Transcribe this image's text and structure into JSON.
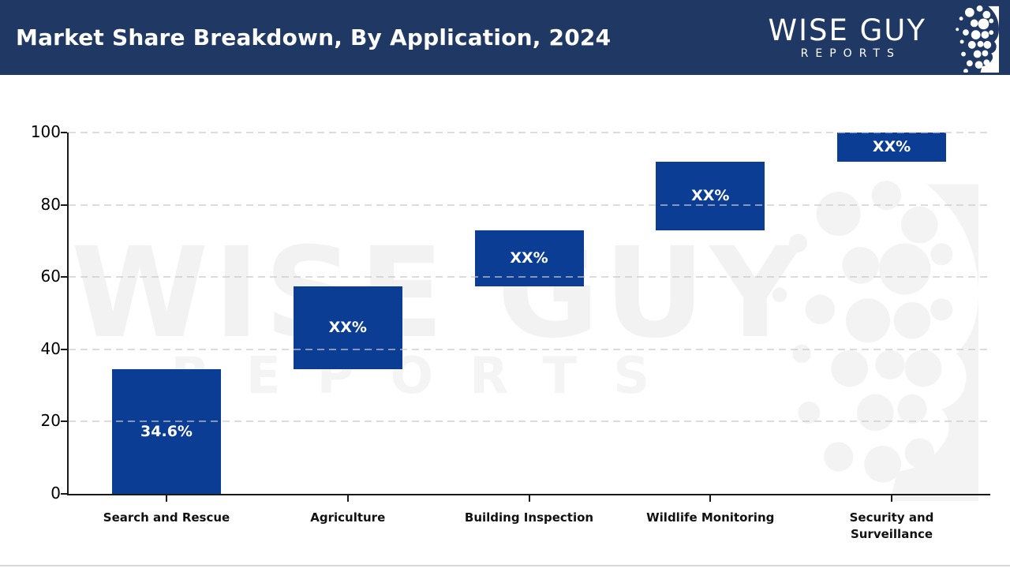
{
  "header": {
    "title": "Market Share Breakdown, By Application, 2024",
    "brand_line1": "WISE GUY",
    "brand_line2": "REPORTS",
    "bg_color": "#1f3864"
  },
  "watermark": {
    "line1": "WISE GUY",
    "line2": "REPORTS"
  },
  "chart_data": {
    "type": "bar",
    "subtype": "waterfall",
    "title": "Market Share Breakdown, By Application, 2024",
    "xlabel": "",
    "ylabel": "",
    "ylim": [
      0,
      100
    ],
    "yticks": [
      0,
      20,
      40,
      60,
      80,
      100
    ],
    "grid": "dashed-horizontal",
    "legend": "none",
    "bar_color": "#0b3d94",
    "label_color": "#ffffff",
    "categories": [
      "Search and Rescue",
      "Agriculture",
      "Building Inspection",
      "Wildlife Monitoring",
      "Security and Surveillance"
    ],
    "segments": [
      {
        "category": "Search and Rescue",
        "start": 0,
        "end": 34.6,
        "label": "34.6%"
      },
      {
        "category": "Agriculture",
        "start": 34.6,
        "end": 57.5,
        "label": "XX%"
      },
      {
        "category": "Building Inspection",
        "start": 57.5,
        "end": 73.0,
        "label": "XX%"
      },
      {
        "category": "Wildlife Monitoring",
        "start": 73.0,
        "end": 92.0,
        "label": "XX%"
      },
      {
        "category": "Security and Surveillance",
        "start": 92.0,
        "end": 100.0,
        "label": "XX%"
      }
    ]
  }
}
